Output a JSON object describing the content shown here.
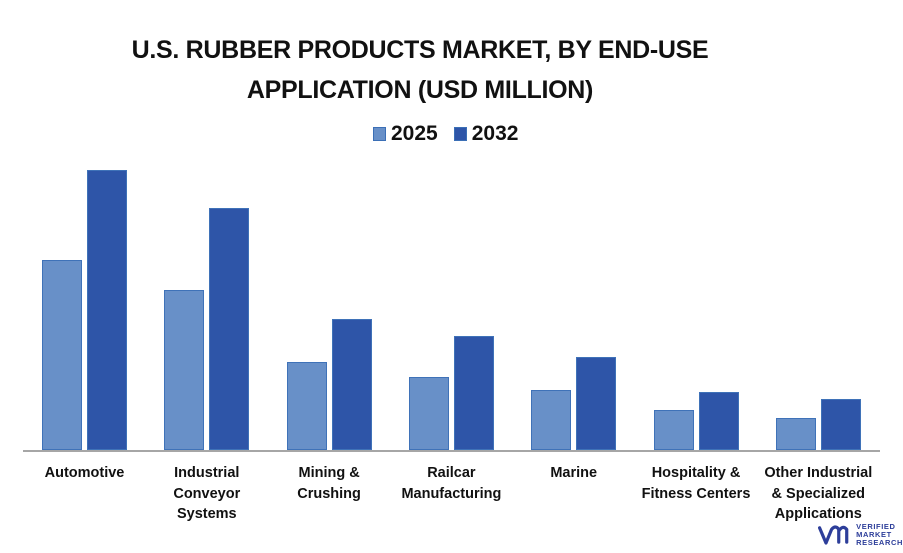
{
  "title_line1": "U.S. RUBBER PRODUCTS MARKET, BY END-USE",
  "title_line2": "APPLICATION (USD MILLION)",
  "legend": [
    {
      "label": "2025",
      "color": "#6890c8"
    },
    {
      "label": "2032",
      "color": "#2e55a8"
    }
  ],
  "logo": {
    "line1": "VERIFIED",
    "line2": "MARKET",
    "line3": "RESEARCH",
    "color": "#2d3e9a"
  },
  "chart_data": {
    "type": "bar",
    "title": "U.S. RUBBER PRODUCTS MARKET, BY END-USE APPLICATION (USD MILLION)",
    "xlabel": "",
    "ylabel": "",
    "grid": false,
    "legend_position": "top",
    "note": "No y-axis shown; values are relative bar heights (pixel units).",
    "categories": [
      [
        "Automotive"
      ],
      [
        "Industrial",
        "Conveyor",
        "Systems"
      ],
      [
        "Mining &",
        "Crushing"
      ],
      [
        "Railcar",
        "Manufacturing"
      ],
      [
        "Marine"
      ],
      [
        "Hospitality &",
        "Fitness Centers"
      ],
      [
        "Other Industrial",
        "& Specialized",
        "Applications"
      ]
    ],
    "series": [
      {
        "name": "2025",
        "color": "#6890c8",
        "values": [
          190,
          160,
          88,
          73,
          60,
          40,
          32
        ]
      },
      {
        "name": "2032",
        "color": "#2e55a8",
        "values": [
          280,
          242,
          131,
          114,
          93,
          58,
          51
        ]
      }
    ],
    "ylim": [
      0,
      280
    ]
  }
}
